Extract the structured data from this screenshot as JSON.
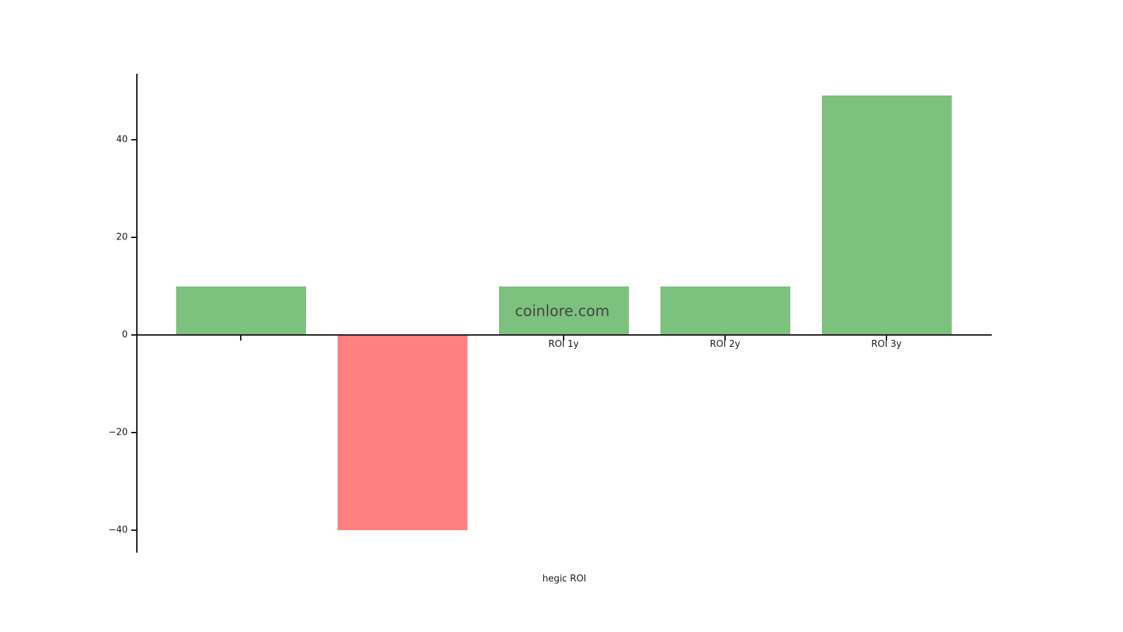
{
  "chart_data": {
    "type": "bar",
    "title": "",
    "xlabel": "hegic ROI",
    "ylabel": "",
    "categories": [
      "",
      "",
      "ROI 1y",
      "ROI 2y",
      "ROI 3y"
    ],
    "values": [
      10,
      -40,
      10,
      10,
      49
    ],
    "yticks": [
      40,
      20,
      0,
      -20,
      -40
    ],
    "ytick_labels": [
      "40",
      "20",
      "0",
      "−20",
      "−40"
    ],
    "ylim": [
      -45,
      53.5
    ],
    "grid": false,
    "legend_position": "none",
    "watermark": "coinlore.com",
    "colors": {
      "positive_bar": "#7dc17e",
      "negative_bar": "#ff8080",
      "axis": "#1a1a1a",
      "tick_text": "#1a1a1a",
      "watermark_text": "#444444",
      "background": "#ffffff"
    }
  }
}
